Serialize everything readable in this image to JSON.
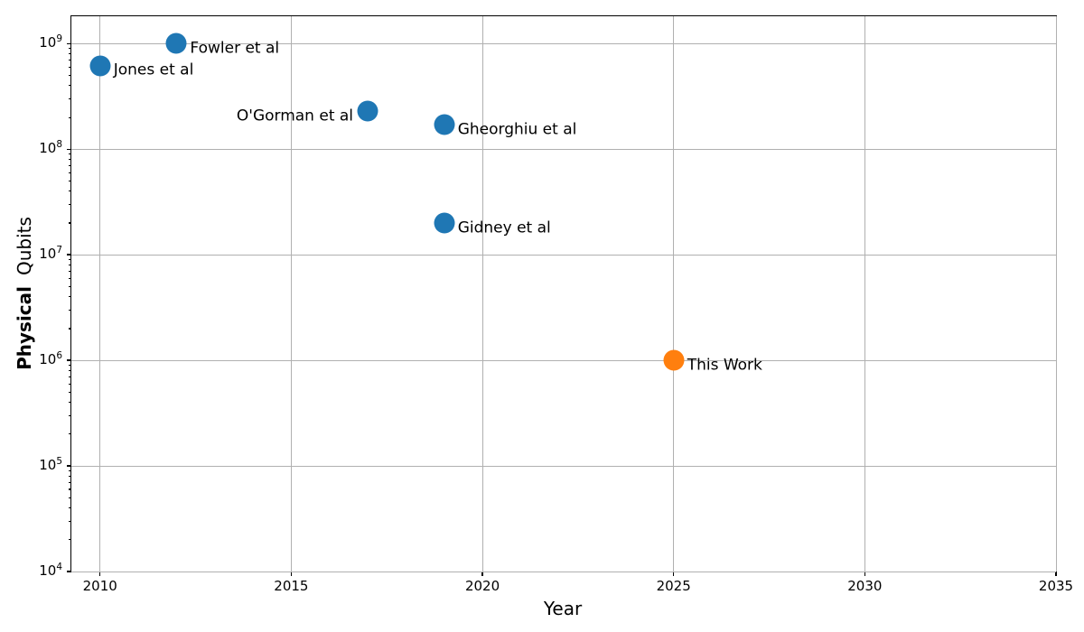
{
  "chart_data": {
    "type": "scatter",
    "title": "",
    "xlabel": "Year",
    "ylabel": {
      "bold_part": "Physical",
      "normal_part": "Qubits"
    },
    "x_ticks": [
      2010,
      2015,
      2020,
      2025,
      2030,
      2035
    ],
    "y_tick_exponents": [
      4,
      5,
      6,
      7,
      8,
      9
    ],
    "y_tick_base": "10",
    "xlim": [
      2009.25,
      2035
    ],
    "ylim_log10": [
      4,
      9.26
    ],
    "y_scale": "log",
    "grid": true,
    "legend": "none",
    "points": [
      {
        "label": "Jones et al",
        "year": 2010,
        "qubits": 620000000.0,
        "color": "#1f77b4",
        "label_side": "right"
      },
      {
        "label": "Fowler et al",
        "year": 2012,
        "qubits": 1000000000.0,
        "color": "#1f77b4",
        "label_side": "right"
      },
      {
        "label": "O'Gorman et al",
        "year": 2017,
        "qubits": 230000000.0,
        "color": "#1f77b4",
        "label_side": "left"
      },
      {
        "label": "Gheorghiu et al",
        "year": 2019,
        "qubits": 170000000.0,
        "color": "#1f77b4",
        "label_side": "right"
      },
      {
        "label": "Gidney et al",
        "year": 2019,
        "qubits": 20000000.0,
        "color": "#1f77b4",
        "label_side": "right"
      },
      {
        "label": "This Work",
        "year": 2025,
        "qubits": 1000000.0,
        "color": "#ff7f0e",
        "label_side": "right"
      }
    ],
    "colors": {
      "series": "#1f77b4",
      "highlight": "#ff7f0e",
      "grid": "#b0b0b0",
      "axis": "#000000",
      "background": "#ffffff"
    }
  }
}
